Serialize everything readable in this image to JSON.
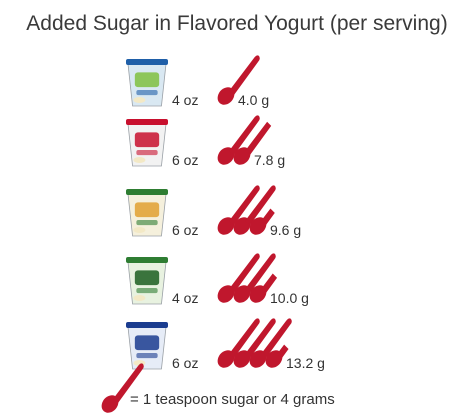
{
  "title": "Added Sugar in Flavored Yogurt (per serving)",
  "colors": {
    "spoon": "#c0172d",
    "text": "#333333"
  },
  "chart_data": {
    "type": "pictograph",
    "unit_icon": "spoon-icon",
    "grams_per_spoon": 4,
    "rows": [
      {
        "cup": {
          "color": "#d9e8f2",
          "lid": "#1f5fa8",
          "label": "#7fbf3f"
        },
        "serving": "4 oz",
        "sugar": "4.0 g",
        "sugar_g": 4.0
      },
      {
        "cup": {
          "color": "#f2f2f2",
          "lid": "#c8102e",
          "label": "#c8102e"
        },
        "serving": "6 oz",
        "sugar": "7.8 g",
        "sugar_g": 7.8
      },
      {
        "cup": {
          "color": "#f5f0dc",
          "lid": "#2e7d32",
          "label": "#e0a030"
        },
        "serving": "6 oz",
        "sugar": "9.6 g",
        "sugar_g": 9.6
      },
      {
        "cup": {
          "color": "#e8f2e0",
          "lid": "#2e7d32",
          "label": "#1b5e20"
        },
        "serving": "4 oz",
        "sugar": "10.0 g",
        "sugar_g": 10.0
      },
      {
        "cup": {
          "color": "#e6ecf7",
          "lid": "#1a3c8f",
          "label": "#1a3c8f"
        },
        "serving": "6 oz",
        "sugar": "13.2 g",
        "sugar_g": 13.2
      }
    ]
  },
  "legend": {
    "text": "= 1 teaspoon sugar or 4 grams"
  }
}
